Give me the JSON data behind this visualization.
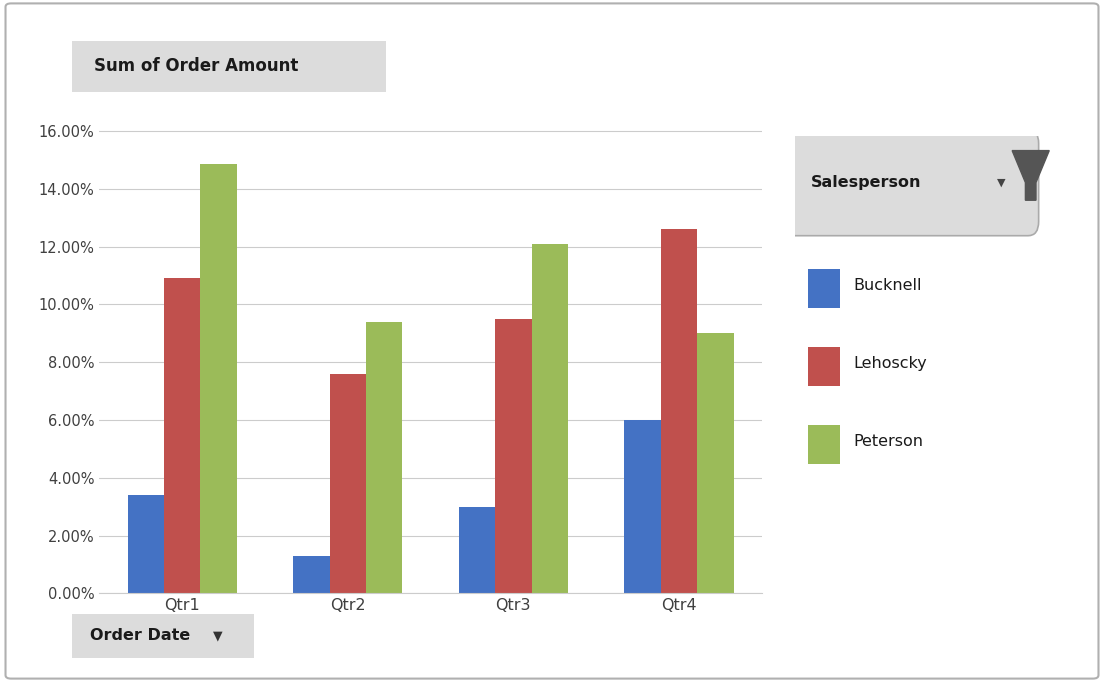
{
  "categories": [
    "Qtr1",
    "Qtr2",
    "Qtr3",
    "Qtr4"
  ],
  "series": {
    "Bucknell": [
      3.4,
      1.3,
      3.0,
      6.0
    ],
    "Lehoscky": [
      10.9,
      7.6,
      9.5,
      12.6
    ],
    "Peterson": [
      14.85,
      9.4,
      12.1,
      9.0
    ]
  },
  "colors": {
    "Bucknell": "#4472C4",
    "Lehoscky": "#C0504D",
    "Peterson": "#9BBB59"
  },
  "title": "Sum of Order Amount",
  "xlabel_button": "Order Date",
  "legend_title": "Salesperson",
  "ylim": [
    0,
    17
  ],
  "yticks": [
    0,
    2,
    4,
    6,
    8,
    10,
    12,
    14,
    16
  ],
  "ytick_labels": [
    "0.00%",
    "2.00%",
    "4.00%",
    "6.00%",
    "8.00%",
    "10.00%",
    "12.00%",
    "14.00%",
    "16.00%"
  ],
  "bg_color": "#FFFFFF",
  "outer_bg_color": "#FFFFFF",
  "frame_color": "#CCCCCC",
  "grid_color": "#CCCCCC",
  "button_bg": "#DCDCDC",
  "button_edge": "#AAAAAA",
  "bar_width": 0.22
}
